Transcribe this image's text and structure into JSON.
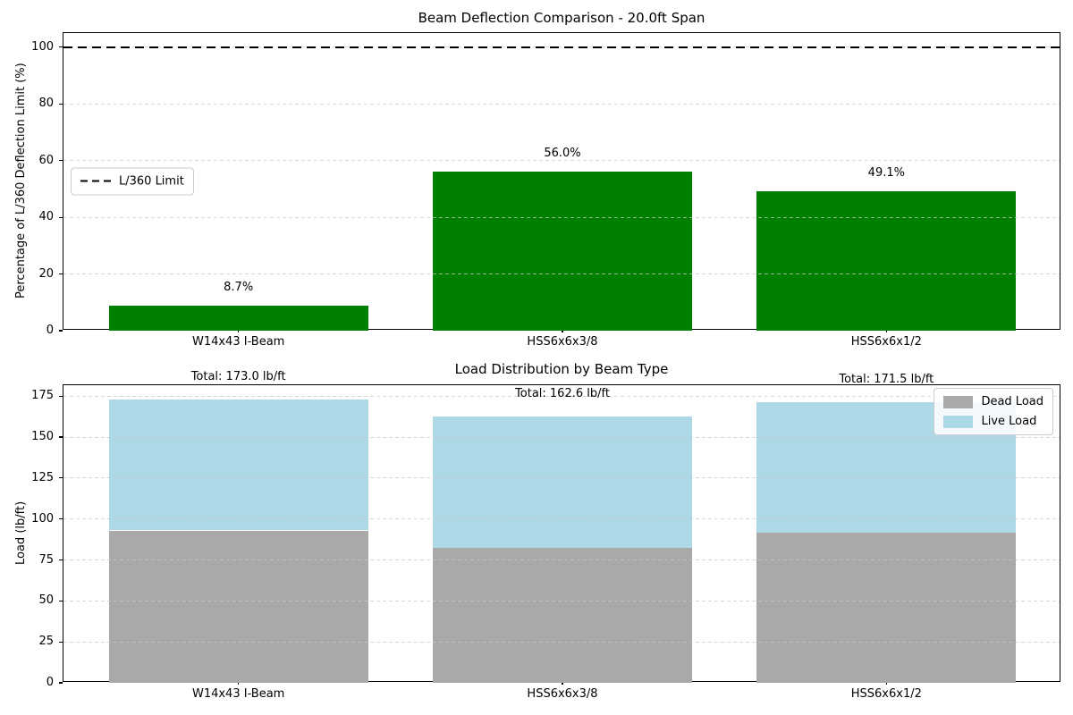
{
  "figure": {
    "background": "#ffffff"
  },
  "charts": [
    {
      "id": "deflection",
      "type": "bar",
      "title": "Beam Deflection Comparison - 20.0ft Span",
      "ylabel": "Percentage of L/360 Deflection Limit (%)",
      "categories": [
        "W14x43 I-Beam",
        "HSS6x6x3/8",
        "HSS6x6x1/2"
      ],
      "values": [
        8.7,
        56.0,
        49.1
      ],
      "value_labels": [
        "8.7%",
        "56.0%",
        "49.1%"
      ],
      "bar_color": "#008000",
      "ylim": [
        0,
        105
      ],
      "yticks": [
        0,
        20,
        40,
        60,
        80,
        100
      ],
      "grid": true,
      "ref_line": {
        "value": 100,
        "label": "L/360 Limit",
        "color": "#000000",
        "style": "dashed"
      },
      "legend": {
        "location": "center-left",
        "entries": [
          {
            "label": "L/360 Limit",
            "swatch": "dashed-line",
            "color": "#000000"
          }
        ]
      }
    },
    {
      "id": "loads",
      "type": "stacked-bar",
      "title": "Load Distribution by Beam Type",
      "ylabel": "Load (lb/ft)",
      "categories": [
        "W14x43 I-Beam",
        "HSS6x6x3/8",
        "HSS6x6x1/2"
      ],
      "series": [
        {
          "name": "Dead Load",
          "color": "#a9a9a9",
          "values": [
            93.0,
            82.6,
            91.5
          ]
        },
        {
          "name": "Live Load",
          "color": "#add8e6",
          "values": [
            80.0,
            80.0,
            80.0
          ]
        }
      ],
      "totals": [
        173.0,
        162.6,
        171.5
      ],
      "bar_labels": [
        "Total: 173.0 lb/ft",
        "Total: 162.6 lb/ft",
        "Total: 171.5 lb/ft"
      ],
      "ylim": [
        0,
        181.65
      ],
      "yticks": [
        0,
        25,
        50,
        75,
        100,
        125,
        150,
        175
      ],
      "grid": true,
      "legend": {
        "location": "upper-right",
        "entries": [
          {
            "label": "Dead Load",
            "swatch": "patch",
            "color": "#a9a9a9"
          },
          {
            "label": "Live Load",
            "swatch": "patch",
            "color": "#add8e6"
          }
        ]
      }
    }
  ]
}
